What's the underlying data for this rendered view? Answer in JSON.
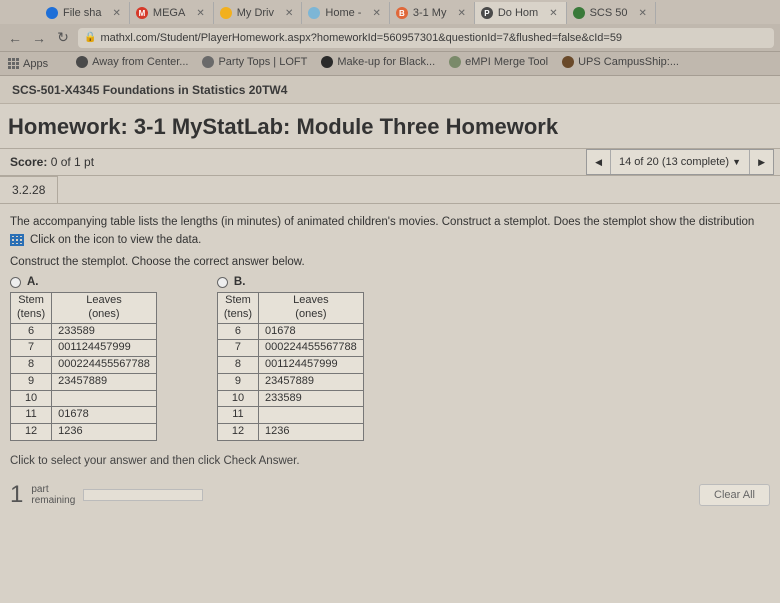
{
  "tabs": [
    {
      "label": "File sha",
      "favicon_bg": "#1e6fd8",
      "favicon_txt": ""
    },
    {
      "label": "MEGA",
      "favicon_bg": "#d63a2a",
      "favicon_txt": "M"
    },
    {
      "label": "My Driv",
      "favicon_bg": "#f2b01e",
      "favicon_txt": ""
    },
    {
      "label": "Home -",
      "favicon_bg": "#7db6d6",
      "favicon_txt": ""
    },
    {
      "label": "3-1 My",
      "favicon_bg": "#e0683a",
      "favicon_txt": "B"
    },
    {
      "label": "Do Hom",
      "active": true,
      "favicon_bg": "#4a4a4a",
      "favicon_txt": "P"
    },
    {
      "label": "SCS 50",
      "favicon_bg": "#3a7a3a",
      "favicon_txt": ""
    }
  ],
  "url": "mathxl.com/Student/PlayerHomework.aspx?homeworkId=560957301&questionId=7&flushed=false&cId=59",
  "bookmarks": {
    "apps": "Apps",
    "items": [
      {
        "label": "Away from Center...",
        "bg": "#4a4a4a"
      },
      {
        "label": "Party Tops | LOFT",
        "bg": "#6a6a6a"
      },
      {
        "label": "Make-up for Black...",
        "bg": "#2a2a2a"
      },
      {
        "label": "eMPI Merge Tool",
        "bg": "#7a8a6a"
      },
      {
        "label": "UPS CampusShip:...",
        "bg": "#6a4a2a"
      }
    ]
  },
  "course": "SCS-501-X4345 Foundations in Statistics 20TW4",
  "homework_title": "Homework: 3-1 MyStatLab: Module Three Homework",
  "score_label": "Score:",
  "score_value": "0 of 1 pt",
  "nav": {
    "pos": "14 of 20 (13 complete)"
  },
  "question_number": "3.2.28",
  "question_text": "The accompanying table lists the lengths (in minutes) of animated children's movies. Construct a stemplot. Does the stemplot show the distribution",
  "data_link": "Click on the icon to view the data.",
  "construct_text": "Construct the stemplot. Choose the correct answer below.",
  "opt_a_label": "A.",
  "opt_b_label": "B.",
  "table_headers": {
    "stem": "Stem",
    "stem_sub": "(tens)",
    "leaves": "Leaves",
    "leaves_sub": "(ones)"
  },
  "stemplot_a": [
    {
      "stem": "6",
      "leaves": "233589"
    },
    {
      "stem": "7",
      "leaves": "001124457999"
    },
    {
      "stem": "8",
      "leaves": "000224455567788"
    },
    {
      "stem": "9",
      "leaves": "23457889"
    },
    {
      "stem": "10",
      "leaves": ""
    },
    {
      "stem": "11",
      "leaves": "01678"
    },
    {
      "stem": "12",
      "leaves": "1236"
    }
  ],
  "stemplot_b": [
    {
      "stem": "6",
      "leaves": "01678"
    },
    {
      "stem": "7",
      "leaves": "000224455567788"
    },
    {
      "stem": "8",
      "leaves": "001124457999"
    },
    {
      "stem": "9",
      "leaves": "23457889"
    },
    {
      "stem": "10",
      "leaves": "233589"
    },
    {
      "stem": "11",
      "leaves": ""
    },
    {
      "stem": "12",
      "leaves": "1236"
    }
  ],
  "click_select": "Click to select your answer and then click Check Answer.",
  "parts_remaining_num": "1",
  "parts_remaining_a": "part",
  "parts_remaining_b": "remaining",
  "clear_all": "Clear All"
}
